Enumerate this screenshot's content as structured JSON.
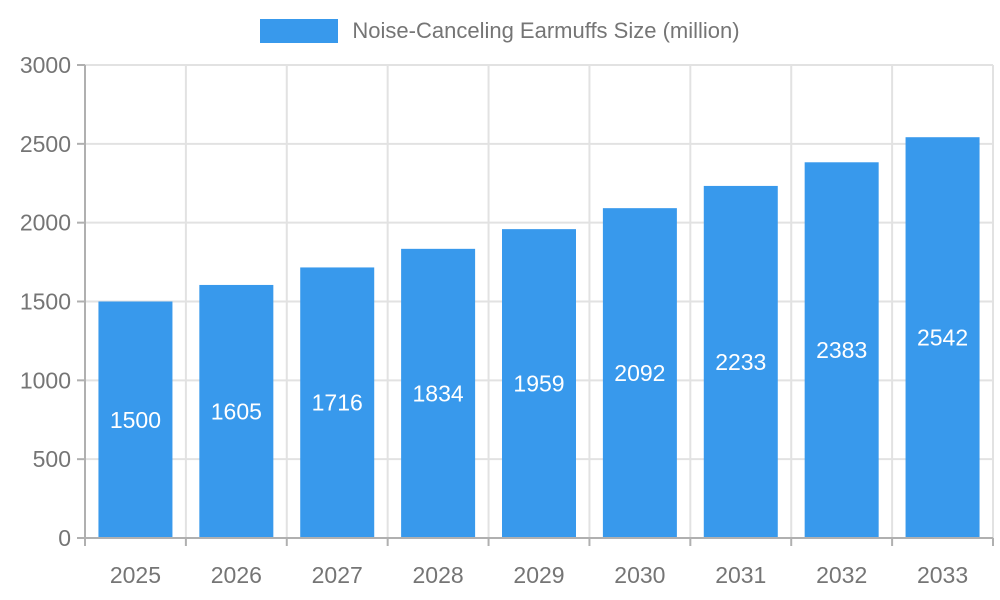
{
  "legend": {
    "label": "Noise-Canceling Earmuffs Size (million)"
  },
  "colors": {
    "bar": "#3899ec",
    "grid": "#e2e2e2",
    "axis": "#b0b0b0",
    "tick_text": "#757575",
    "bar_label_text": "#ffffff",
    "background": "#ffffff"
  },
  "chart_data": {
    "type": "bar",
    "title": "Noise-Canceling Earmuffs Size (million)",
    "categories": [
      "2025",
      "2026",
      "2027",
      "2028",
      "2029",
      "2030",
      "2031",
      "2032",
      "2033"
    ],
    "values": [
      1500,
      1605,
      1716,
      1834,
      1959,
      2092,
      2233,
      2383,
      2542
    ],
    "xlabel": "",
    "ylabel": "",
    "ylim": [
      0,
      3000
    ],
    "yticks": [
      0,
      500,
      1000,
      1500,
      2000,
      2500,
      3000
    ],
    "grid": true,
    "legend_position": "top",
    "value_labels": "inside-center"
  }
}
